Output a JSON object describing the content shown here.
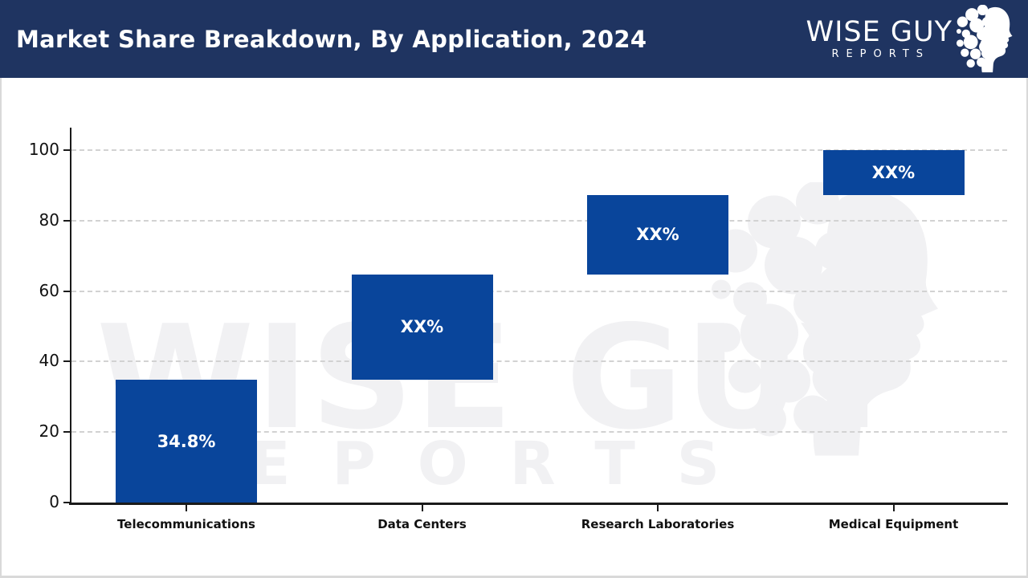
{
  "header": {
    "title": "Market Share Breakdown, By Application, 2024",
    "bg_color": "#1F3461",
    "logo": {
      "wordmark": "WISE GUY",
      "subtext": "REPORTS"
    }
  },
  "watermark": {
    "wordmark": "WISE GUY",
    "subtext": "REPORTS"
  },
  "chart_data": {
    "type": "bar",
    "subtype": "floating-waterfall-bars",
    "title": "Market Share Breakdown, By Application, 2024",
    "categories": [
      "Telecommunications",
      "Data Centers",
      "Research Laboratories",
      "Medical Equipment"
    ],
    "segments": [
      {
        "category": "Telecommunications",
        "start": 0,
        "end": 34.8,
        "label": "34.8%"
      },
      {
        "category": "Data Centers",
        "start": 34.8,
        "end": 64.8,
        "label": "XX%"
      },
      {
        "category": "Research Laboratories",
        "start": 64.8,
        "end": 87.2,
        "label": "XX%"
      },
      {
        "category": "Medical Equipment",
        "start": 87.2,
        "end": 100,
        "label": "XX%"
      }
    ],
    "xlabel": "",
    "ylabel": "",
    "ylim": [
      0,
      100
    ],
    "yticks": [
      0,
      20,
      40,
      60,
      80,
      100
    ],
    "grid": "horizontal dashed",
    "legend": "none",
    "bar_color": "#09459B",
    "bar_label_color": "#ffffff",
    "axis_color": "#1a1a1a",
    "grid_color": "#d2d2d2"
  }
}
